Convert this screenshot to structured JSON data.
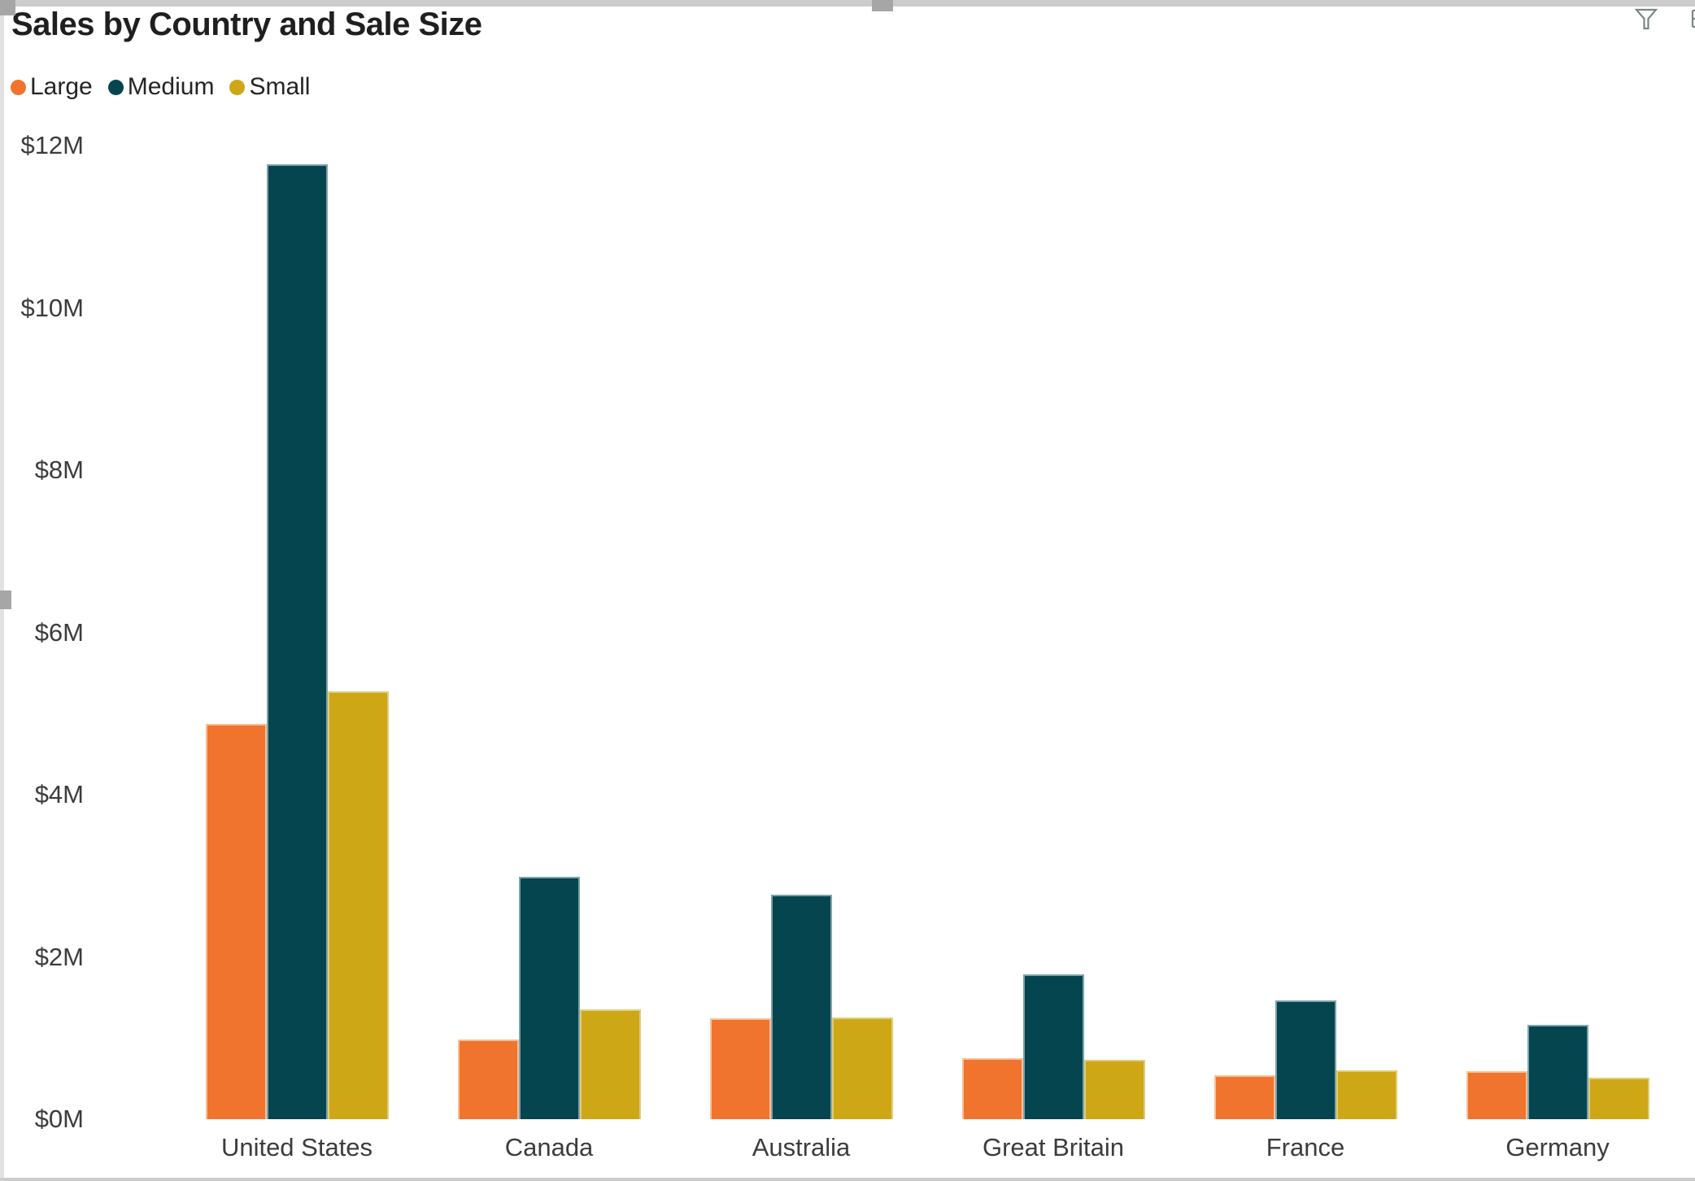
{
  "window": {
    "icons": [
      {
        "name": "filter-icon",
        "color": "#7a8784"
      },
      {
        "name": "clipped-header-icon",
        "color": "#7a8784"
      }
    ],
    "selection_handles": [
      "top-left-corner",
      "top-middle",
      "left-middle"
    ]
  },
  "chart_data": {
    "type": "bar",
    "title": "Sales by Country and Sale Size",
    "units": "USD millions",
    "categories": [
      "United States",
      "Canada",
      "Australia",
      "Great Britain",
      "France",
      "Germany"
    ],
    "series": [
      {
        "name": "Large",
        "color": "#F0742E",
        "border_color": "#F7C096",
        "values": [
          4.87,
          0.98,
          1.24,
          0.75,
          0.54,
          0.59
        ]
      },
      {
        "name": "Medium",
        "color": "#04454F",
        "border_color": "#7FA2A9",
        "values": [
          11.77,
          2.99,
          2.77,
          1.78,
          1.46,
          1.16
        ]
      },
      {
        "name": "Small",
        "color": "#CDA716",
        "border_color": "#E0CC7A",
        "values": [
          5.27,
          1.35,
          1.25,
          0.73,
          0.6,
          0.51
        ]
      }
    ],
    "y_ticks": [
      {
        "value": 0,
        "label": "$0M"
      },
      {
        "value": 2,
        "label": "$2M"
      },
      {
        "value": 4,
        "label": "$4M"
      },
      {
        "value": 6,
        "label": "$6M"
      },
      {
        "value": 8,
        "label": "$8M"
      },
      {
        "value": 10,
        "label": "$10M"
      },
      {
        "value": 12,
        "label": "$12M"
      }
    ],
    "ylim": [
      0,
      12
    ],
    "xlabel": "",
    "ylabel": "",
    "grid": false,
    "legend_position": "top-left"
  }
}
